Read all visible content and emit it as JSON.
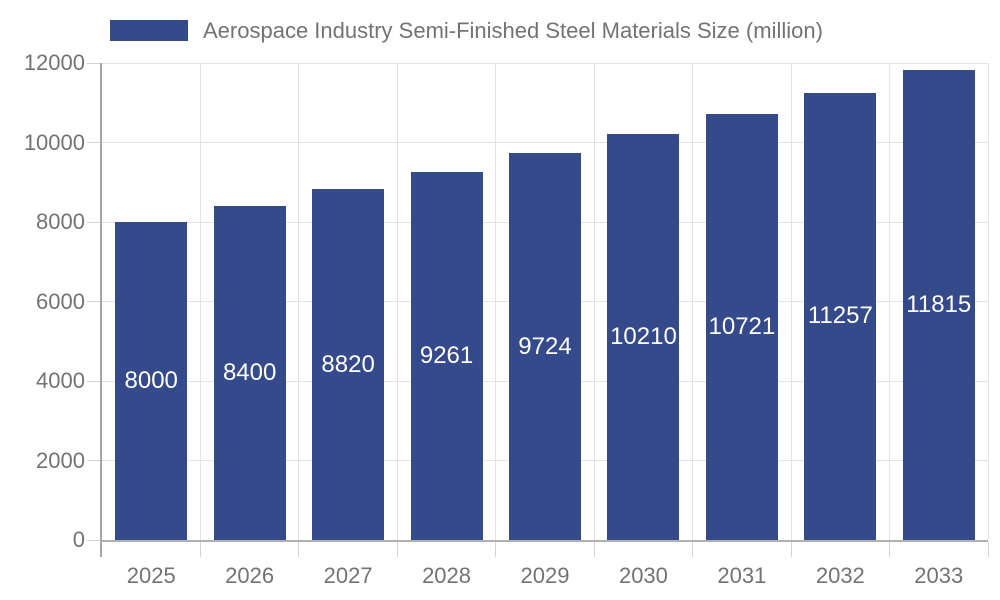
{
  "chart_data": {
    "type": "bar",
    "title": "Aerospace Industry Semi-Finished Steel Materials Size (million)",
    "legend": {
      "label": "Aerospace Industry Semi-Finished Steel Materials Size (million)",
      "position": "top-left"
    },
    "categories": [
      "2025",
      "2026",
      "2027",
      "2028",
      "2029",
      "2030",
      "2031",
      "2032",
      "2033"
    ],
    "values": [
      8000,
      8400,
      8820,
      9261,
      9724,
      10210,
      10721,
      11257,
      11815
    ],
    "bar_value_labels": [
      "8000",
      "8400",
      "8820",
      "9261",
      "9724",
      "10210",
      "10721",
      "11257",
      "11815"
    ],
    "xlabel": "",
    "ylabel": "",
    "ylim": [
      0,
      12000
    ],
    "yticks": [
      0,
      2000,
      4000,
      6000,
      8000,
      10000,
      12000
    ],
    "ytick_labels": [
      "0",
      "2000",
      "4000",
      "6000",
      "8000",
      "10000",
      "12000"
    ],
    "grid": true,
    "colors": {
      "bar": "#354a8b",
      "bar_label": "#ffffff",
      "grid": "#e3e3e3",
      "axis_line": "#a6a6a6",
      "baseline": "#b0b0b0",
      "tick": "#d2d2d2",
      "text": "#737373",
      "background": "#ffffff"
    }
  }
}
